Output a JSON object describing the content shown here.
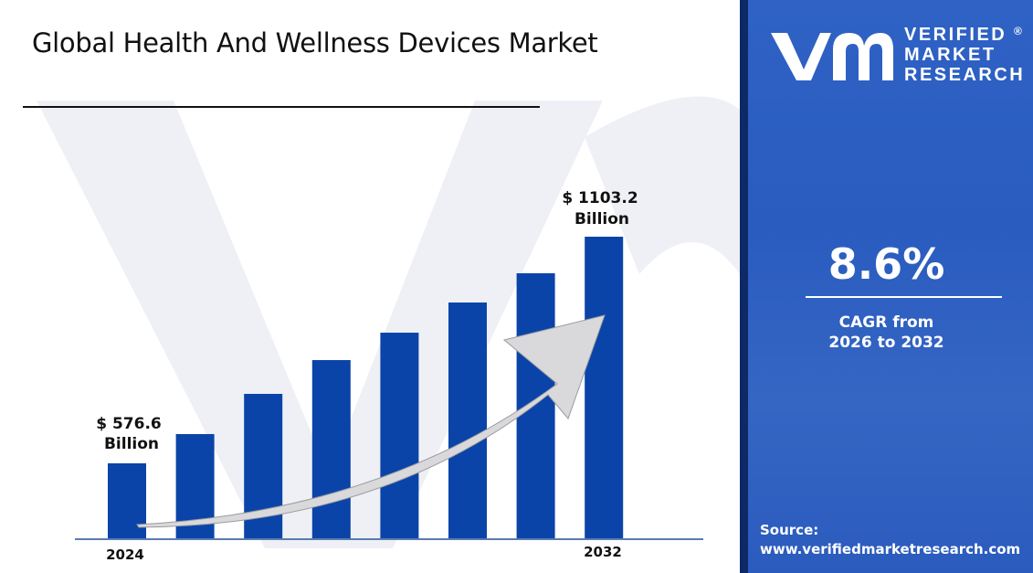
{
  "title": "Global Health And Wellness Devices Market",
  "colors": {
    "bar": "#0a44a8",
    "panel": "#2f62c4",
    "axis": "#5a7bb0"
  },
  "chart_data": {
    "type": "bar",
    "title": "Global Health And Wellness Devices Market",
    "categories": [
      "2024",
      "",
      "",
      "",
      "",
      "",
      "",
      "2032"
    ],
    "values": [
      576.6,
      644.6,
      738.0,
      816.5,
      880.2,
      950.3,
      1018.2,
      1103.2
    ],
    "data_labels": {
      "first": {
        "amount": "$ 576.6",
        "unit": "Billion"
      },
      "last": {
        "amount": "$ 1103.2",
        "unit": "Billion"
      }
    },
    "xlabel": "",
    "ylabel": "",
    "grid": false,
    "trend_arrow": true
  },
  "logo": {
    "line1": "VERIFIED",
    "line2": "MARKET",
    "line3": "RESEARCH",
    "registered": "®"
  },
  "cagr": {
    "value": "8.6%",
    "label_line1": "CAGR from",
    "label_line2": "2026 to 2032"
  },
  "source": {
    "label": "Source:",
    "url": "www.verifiedmarketresearch.com"
  }
}
